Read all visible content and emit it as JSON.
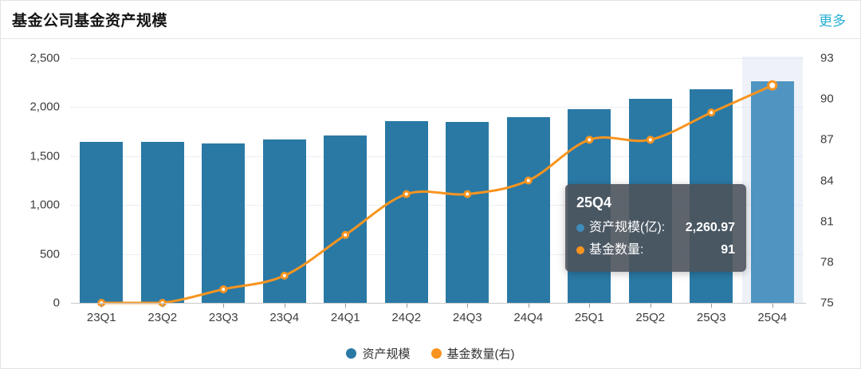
{
  "header": {
    "title": "基金公司基金资产规模",
    "more_label": "更多"
  },
  "colors": {
    "bar": "#2a79a5",
    "bar_highlight": "#5095c1",
    "line": "#f8941f",
    "more_link": "#29b0d4",
    "tooltip_dot_bar": "#3e8cba",
    "tooltip_dot_line": "#f8941f",
    "highlight_band": "#eef1f8"
  },
  "chart_data": {
    "type": "bar",
    "title": "基金公司基金资产规模",
    "categories": [
      "23Q1",
      "23Q2",
      "23Q3",
      "23Q4",
      "24Q1",
      "24Q2",
      "24Q3",
      "24Q4",
      "25Q1",
      "25Q2",
      "25Q3",
      "25Q4"
    ],
    "series": [
      {
        "name": "资产规模",
        "type": "bar",
        "axis": "left",
        "color": "#2a79a5",
        "values": [
          1645,
          1645,
          1625,
          1670,
          1710,
          1855,
          1845,
          1895,
          1975,
          2085,
          2185,
          2260.97
        ]
      },
      {
        "name": "基金数量(右)",
        "type": "line",
        "axis": "right",
        "color": "#f8941f",
        "values": [
          75,
          75,
          76,
          77,
          80,
          83,
          83,
          84,
          87,
          87,
          89,
          91
        ]
      }
    ],
    "left_axis": {
      "min": 0,
      "max": 2500,
      "step": 500,
      "tick_labels": [
        "0",
        "500",
        "1,000",
        "1,500",
        "2,000",
        "2,500"
      ]
    },
    "right_axis": {
      "min": 75,
      "max": 93,
      "step": 3,
      "tick_labels": [
        "75",
        "78",
        "81",
        "84",
        "87",
        "90",
        "93"
      ]
    },
    "grid": "dotted horizontal",
    "legend_position": "bottom center",
    "highlight_category": "25Q4"
  },
  "tooltip": {
    "title": "25Q4",
    "rows": [
      {
        "label": "资产规模(亿):",
        "value": "2,260.97",
        "dot_color": "#3e8cba"
      },
      {
        "label": "基金数量:",
        "value": "91",
        "dot_color": "#f8941f"
      }
    ]
  },
  "legend": [
    {
      "label": "资产规模",
      "color": "#2a79a5"
    },
    {
      "label": "基金数量(右)",
      "color": "#f8941f"
    }
  ]
}
